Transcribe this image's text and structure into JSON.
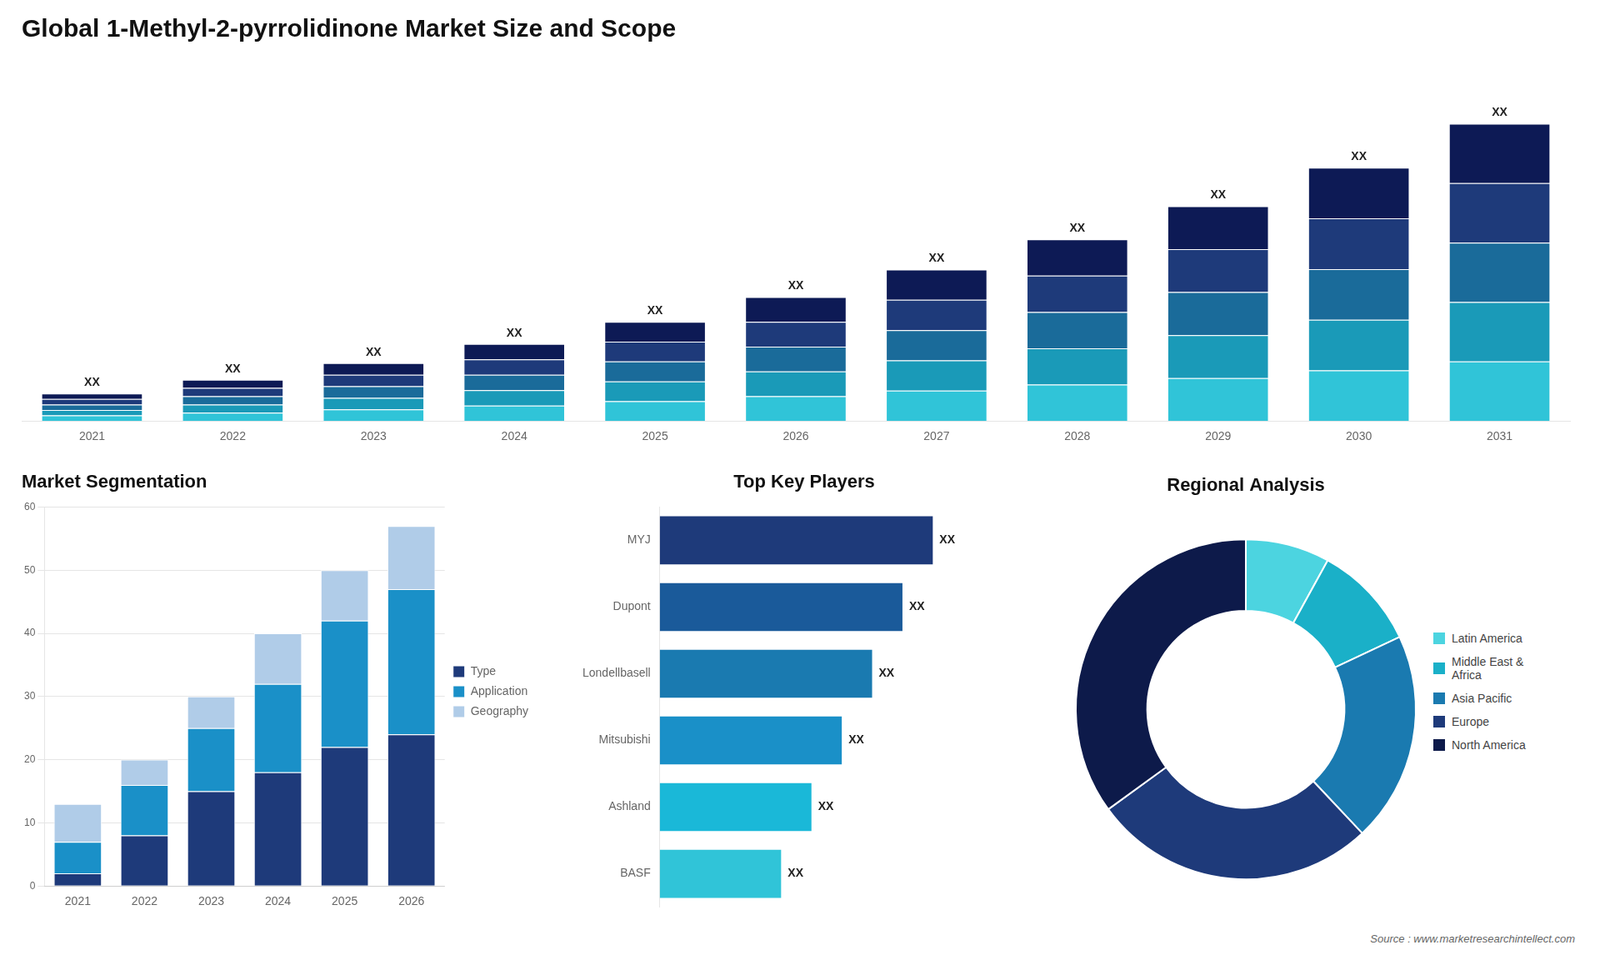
{
  "chart_data": [
    {
      "type": "bar",
      "title": "Global 1-Methyl-2-pyrrolidinone Market Size and Scope",
      "categories": [
        "2021",
        "2022",
        "2023",
        "2024",
        "2025",
        "2026",
        "2027",
        "2028",
        "2029",
        "2030",
        "2031"
      ],
      "stacked": true,
      "series": [
        {
          "color": "#30c4d8",
          "values": [
            0.2,
            0.3,
            0.42,
            0.56,
            0.72,
            0.9,
            1.1,
            1.32,
            1.56,
            1.84,
            2.16
          ]
        },
        {
          "color": "#1a9ab8",
          "values": [
            0.2,
            0.3,
            0.42,
            0.56,
            0.72,
            0.9,
            1.1,
            1.32,
            1.56,
            1.84,
            2.16
          ]
        },
        {
          "color": "#1a6b9a",
          "values": [
            0.2,
            0.3,
            0.42,
            0.56,
            0.72,
            0.9,
            1.1,
            1.32,
            1.56,
            1.84,
            2.16
          ]
        },
        {
          "color": "#1e3a7a",
          "values": [
            0.2,
            0.3,
            0.42,
            0.56,
            0.72,
            0.9,
            1.1,
            1.32,
            1.56,
            1.84,
            2.16
          ]
        },
        {
          "color": "#0d1a55",
          "values": [
            0.2,
            0.3,
            0.42,
            0.56,
            0.72,
            0.9,
            1.1,
            1.32,
            1.56,
            1.84,
            2.16
          ]
        }
      ],
      "ylim": [
        0,
        13.176
      ],
      "tick_labels": "x",
      "grid": false,
      "annotations": [
        {
          "text": "XX",
          "x": "2021"
        },
        {
          "text": "XX",
          "x": "2022"
        },
        {
          "text": "XX",
          "x": "2023"
        },
        {
          "text": "XX",
          "x": "2024"
        },
        {
          "text": "XX",
          "x": "2025"
        },
        {
          "text": "XX",
          "x": "2026"
        },
        {
          "text": "XX",
          "x": "2027"
        },
        {
          "text": "XX",
          "x": "2028"
        },
        {
          "text": "XX",
          "x": "2029"
        },
        {
          "text": "XX",
          "x": "2030"
        },
        {
          "text": "XX",
          "x": "2031"
        }
      ]
    },
    {
      "type": "bar",
      "title": "Market Segmentation",
      "categories": [
        "2021",
        "2022",
        "2023",
        "2024",
        "2025",
        "2026"
      ],
      "stacked": true,
      "series": [
        {
          "name": "Type",
          "color": "#1e3a7a",
          "values": [
            2,
            8,
            15,
            18,
            22,
            24
          ]
        },
        {
          "name": "Application",
          "color": "#1a90c8",
          "values": [
            5,
            8,
            10,
            14,
            20,
            23
          ]
        },
        {
          "name": "Geography",
          "color": "#b0cce8",
          "values": [
            6,
            4,
            5,
            8,
            8,
            10
          ]
        }
      ],
      "ylim": [
        0,
        60
      ],
      "yticks": [
        0,
        10,
        20,
        30,
        40,
        50,
        60
      ],
      "grid": true,
      "legend": "right"
    },
    {
      "type": "bar",
      "orientation": "horizontal",
      "title": "Top Key Players",
      "categories": [
        "MYJ",
        "Dupont",
        "Londellbasell",
        "Mitsubishi",
        "Ashland",
        "BASF"
      ],
      "values": [
        9.0,
        8.0,
        7.0,
        6.0,
        5.0,
        4.0
      ],
      "colors": [
        "#1e3a7a",
        "#1a5a9a",
        "#1a7ab0",
        "#1a90c8",
        "#1ab8d8",
        "#30c4d8"
      ],
      "xlim": [
        0,
        12.15
      ],
      "tick_labels": "y",
      "grid": false,
      "data_labels": true,
      "value_labels": [
        "XX",
        "XX",
        "XX",
        "XX",
        "XX",
        "XX"
      ]
    },
    {
      "type": "doughnut",
      "title": "Regional Analysis",
      "categories": [
        "Latin America",
        "Middle East &\nAfrica",
        "Asia Pacific",
        "Europe",
        "North America"
      ],
      "values": [
        8,
        10,
        20,
        27,
        35
      ],
      "colors": [
        "#4cd4e0",
        "#1ab0c8",
        "#1a7ab0",
        "#1e3a7a",
        "#0d1a4a"
      ],
      "legend": "right",
      "annotations": [
        {
          "text": "Source : www.marketresearchintellect.com"
        }
      ]
    }
  ]
}
